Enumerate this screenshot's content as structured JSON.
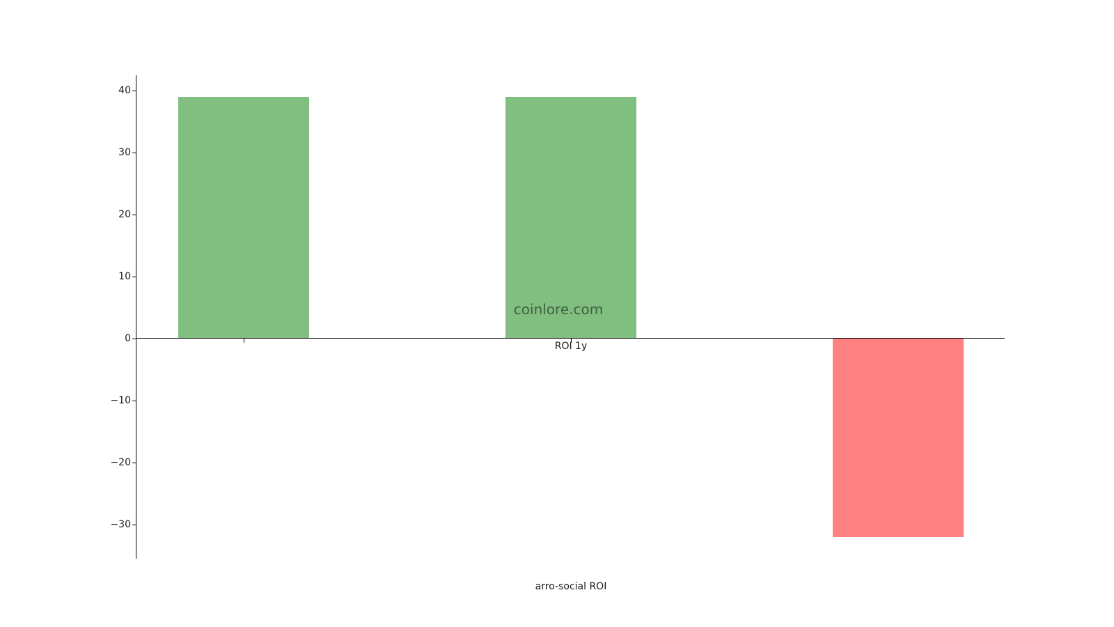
{
  "chart_data": {
    "type": "bar",
    "categories": [
      "",
      "ROI 1y",
      ""
    ],
    "values": [
      39,
      39,
      -32
    ],
    "bar_colors": [
      "#80bf80",
      "#80bf80",
      "#ff8080"
    ],
    "yticks": [
      40,
      30,
      20,
      10,
      0,
      -10,
      -20,
      -30
    ],
    "ytick_labels": [
      "40",
      "30",
      "20",
      "10",
      "0",
      "−10",
      "−20",
      "−30"
    ],
    "ylim": [
      -35.5,
      42.5
    ],
    "title": "",
    "xlabel": "arro-social ROI",
    "ylabel": "",
    "grid": false,
    "legend_position": "none",
    "watermark": "coinlore.com",
    "axis_color": "#000000",
    "text_color": "#1a1a1a",
    "watermark_color_on_bar": "#406040"
  }
}
